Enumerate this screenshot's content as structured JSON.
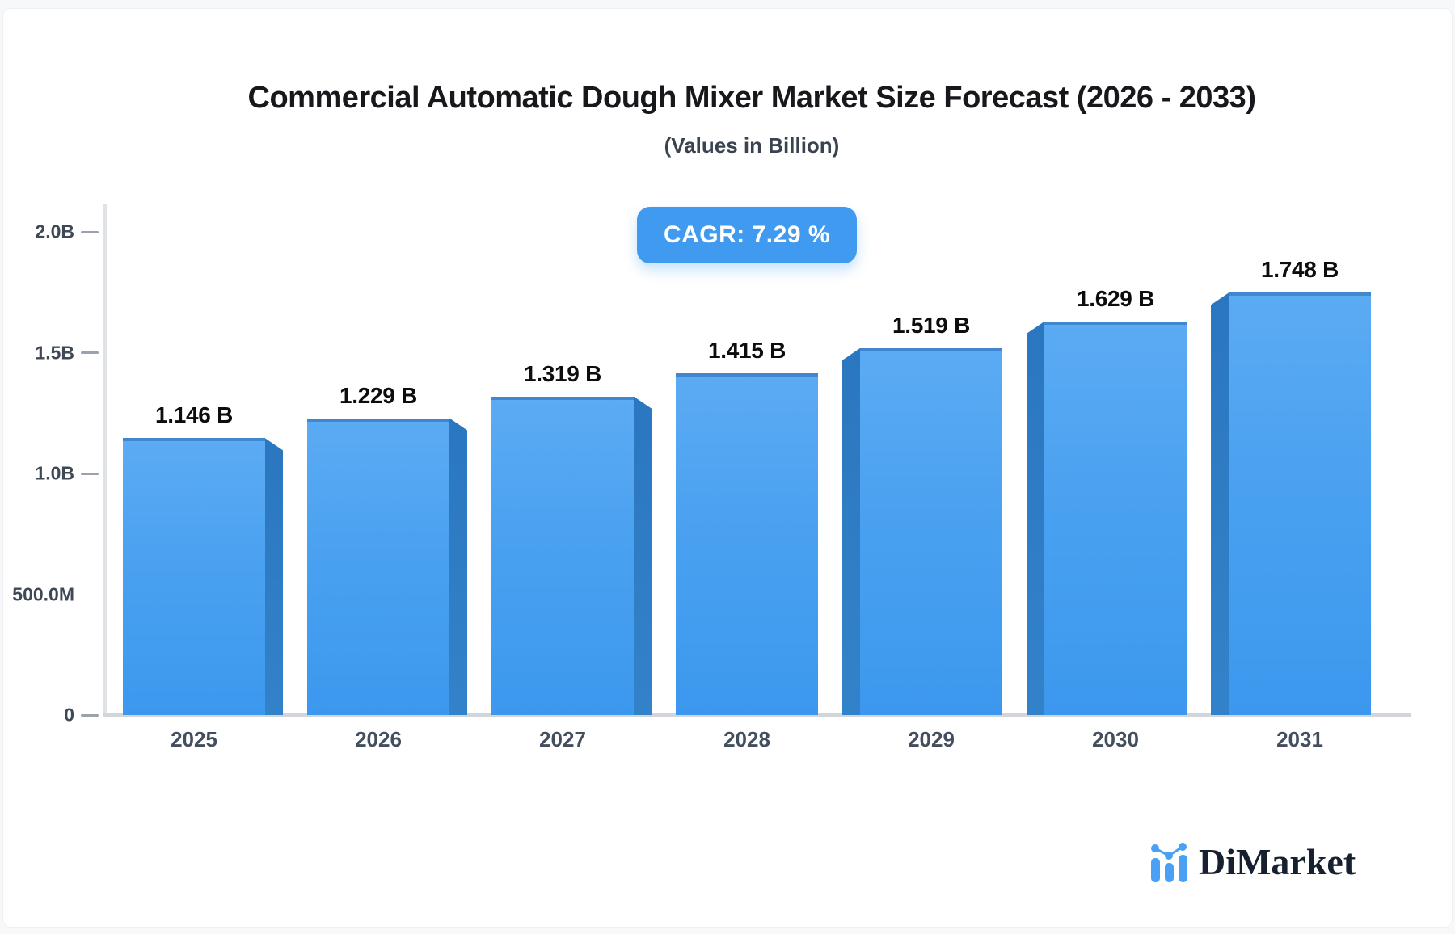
{
  "header": {
    "title": "Commercial Automatic Dough Mixer Market Size Forecast (2026 - 2033)",
    "subtitle": "(Values in Billion)"
  },
  "badge": {
    "label": "CAGR: 7.29 %"
  },
  "chart_data": {
    "type": "bar",
    "title": "Commercial Automatic Dough Mixer Market Size Forecast (2026 - 2033)",
    "subtitle": "(Values in Billion)",
    "cagr_label": "CAGR: 7.29 %",
    "categories": [
      "2025",
      "2026",
      "2027",
      "2028",
      "2029",
      "2030",
      "2031"
    ],
    "values": [
      1.146,
      1.229,
      1.319,
      1.415,
      1.519,
      1.629,
      1.748
    ],
    "value_labels": [
      "1.146 B",
      "1.229 B",
      "1.319 B",
      "1.415 B",
      "1.519 B",
      "1.629 B",
      "1.748 B"
    ],
    "y_ticks": [
      {
        "label": "2.0B",
        "value": 2.0,
        "dash": true
      },
      {
        "label": "1.5B",
        "value": 1.5,
        "dash": true
      },
      {
        "label": "1.0B",
        "value": 1.0,
        "dash": true
      },
      {
        "label": "500.0M",
        "value": 0.5,
        "dash": false
      },
      {
        "label": "0",
        "value": 0.0,
        "dash": true
      }
    ],
    "ylim": [
      0,
      2.0
    ],
    "grid": false,
    "legend": false,
    "colors": {
      "bar_front_top": "#5babf3",
      "bar_front_bottom": "#3c98ee",
      "bar_side": "#2e7dc5",
      "badge_background": "#3f9af0",
      "axis_line": "#d2d6db",
      "tick_text": "#3f4956",
      "category_text": "#434e5e",
      "value_text": "#0c0d0f"
    }
  },
  "logo": {
    "text": "DiMarket",
    "icon": "bar-chart-logo-icon",
    "icon_color": "#4aa0f5",
    "text_color": "#16202e"
  }
}
